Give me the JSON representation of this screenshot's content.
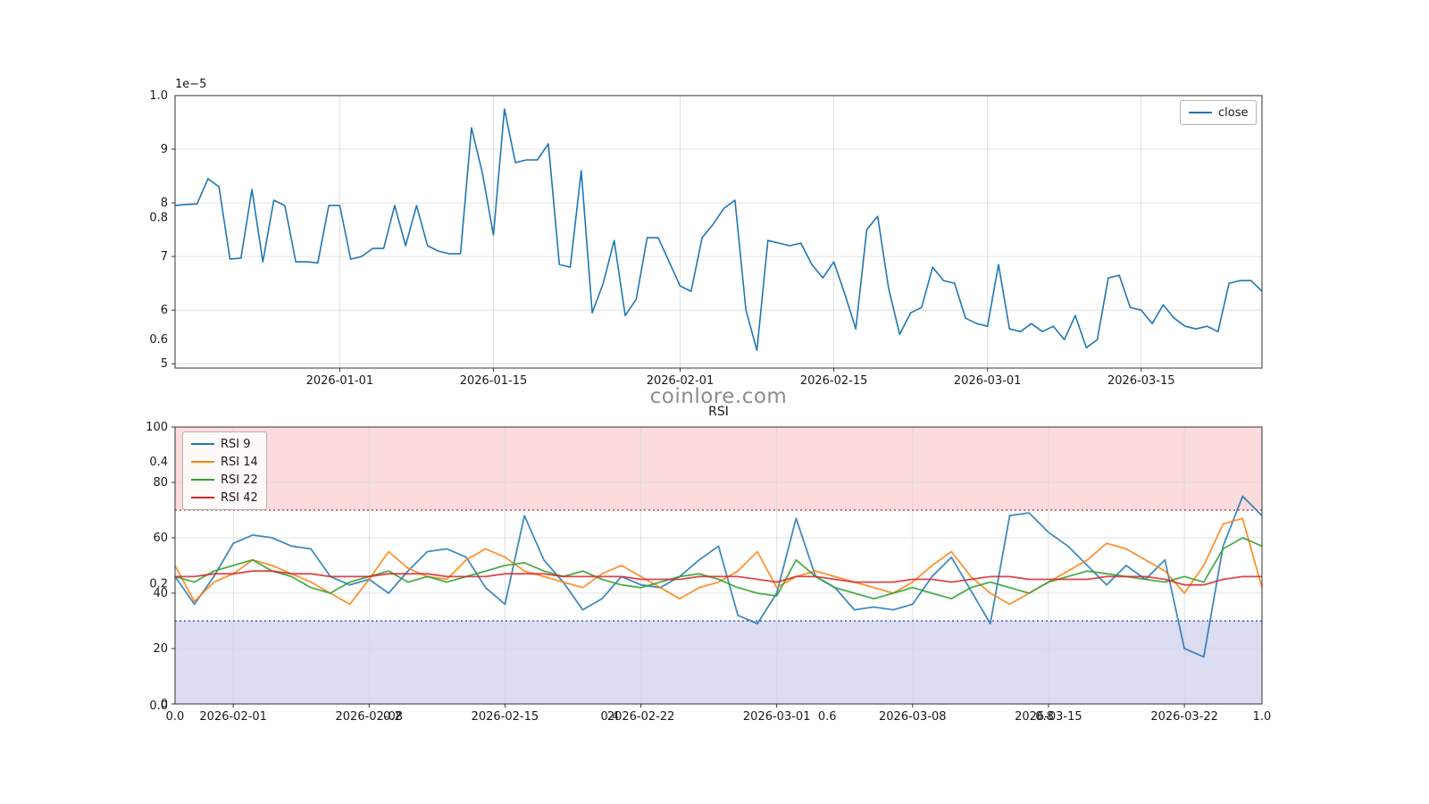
{
  "watermark": "coinlore.com",
  "colors": {
    "close_line": "#1f77b4",
    "grid": "#d8d8d8",
    "spine": "#333333",
    "tick_text": "#1a1a1a",
    "dotted_red": "#cc2222",
    "dotted_blue": "#2233cc",
    "band_overbought": "#fbdbdb",
    "band_oversold": "#dcdcf3"
  },
  "twin_axis": {
    "yticks": [
      1.0,
      0.8,
      0.6,
      0.4,
      0.2,
      0.0
    ],
    "xticks": [
      0.0,
      0.2,
      0.4,
      0.6,
      0.8,
      1.0
    ]
  },
  "chart_data": [
    {
      "type": "line",
      "title": "",
      "legend": [
        "close"
      ],
      "line_color": "#1f77b4",
      "unit": "1e-5",
      "offset_label": "1e−5",
      "x_start": "2025-12-17",
      "x_freq": "daily",
      "ylim": [
        4.92,
        10.0
      ],
      "yticks": [
        9,
        8,
        7,
        6,
        5
      ],
      "xticks": [
        "2026-01-01",
        "2026-01-15",
        "2026-02-01",
        "2026-02-15",
        "2026-03-01",
        "2026-03-15"
      ],
      "values_e5": [
        7.95,
        7.97,
        7.98,
        8.45,
        8.3,
        6.95,
        6.97,
        8.25,
        6.9,
        8.05,
        7.95,
        6.9,
        6.9,
        6.88,
        7.95,
        7.95,
        6.95,
        7.0,
        7.15,
        7.15,
        7.95,
        7.2,
        7.95,
        7.2,
        7.1,
        7.05,
        7.05,
        9.4,
        8.55,
        7.4,
        9.75,
        8.75,
        8.8,
        8.8,
        9.1,
        6.85,
        6.8,
        8.6,
        5.95,
        6.5,
        7.3,
        5.9,
        6.2,
        7.35,
        7.35,
        6.9,
        6.45,
        6.35,
        7.35,
        7.6,
        7.9,
        8.05,
        6.0,
        5.25,
        7.3,
        7.25,
        7.2,
        7.25,
        6.85,
        6.6,
        6.9,
        6.3,
        5.65,
        7.5,
        7.75,
        6.4,
        5.55,
        5.95,
        6.05,
        6.8,
        6.55,
        6.5,
        5.85,
        5.75,
        5.7,
        6.85,
        5.65,
        5.6,
        5.75,
        5.6,
        5.7,
        5.45,
        5.9,
        5.3,
        5.45,
        6.6,
        6.65,
        6.05,
        6.0,
        5.75,
        6.1,
        5.85,
        5.7,
        5.65,
        5.7,
        5.6,
        6.5,
        6.55,
        6.55,
        6.35
      ]
    },
    {
      "type": "line",
      "title": "RSI",
      "x_start": "2026-01-29",
      "x_freq": "daily",
      "ylim": [
        0,
        100
      ],
      "yticks": [
        100,
        80,
        60,
        40,
        20,
        0
      ],
      "xticks": [
        "2026-02-01",
        "2026-02-08",
        "2026-02-15",
        "2026-02-22",
        "2026-03-01",
        "2026-03-08",
        "2026-03-15",
        "2026-03-22"
      ],
      "overbought_line": 70,
      "oversold_line": 30,
      "bands": [
        {
          "from": 70,
          "to": 100,
          "color": "#fbdbdb"
        },
        {
          "from": 0,
          "to": 30,
          "color": "#dcdcf3"
        }
      ],
      "series": [
        {
          "name": "RSI 9",
          "color": "#1f77b4",
          "values": [
            46,
            36,
            46,
            58,
            61,
            60,
            57,
            56,
            46,
            43,
            45,
            40,
            48,
            55,
            56,
            53,
            42,
            36,
            68,
            52,
            44,
            34,
            38,
            46,
            43,
            42,
            46,
            52,
            57,
            32,
            29,
            40,
            67,
            46,
            42,
            34,
            35,
            34,
            36,
            46,
            53,
            41,
            29,
            68,
            69,
            62,
            57,
            50,
            43,
            50,
            45,
            52,
            20,
            17,
            57,
            75,
            68
          ]
        },
        {
          "name": "RSI 14",
          "color": "#ff7f0e",
          "values": [
            50,
            37,
            44,
            47,
            52,
            50,
            47,
            44,
            40,
            36,
            45,
            55,
            49,
            46,
            45,
            52,
            56,
            53,
            48,
            46,
            44,
            42,
            47,
            50,
            46,
            42,
            38,
            42,
            44,
            48,
            55,
            42,
            46,
            48,
            46,
            44,
            42,
            40,
            44,
            50,
            55,
            46,
            40,
            36,
            40,
            44,
            48,
            52,
            58,
            56,
            52,
            48,
            40,
            50,
            65,
            67,
            42
          ]
        },
        {
          "name": "RSI 22",
          "color": "#2ca02c",
          "values": [
            46,
            44,
            48,
            50,
            52,
            48,
            46,
            42,
            40,
            44,
            46,
            48,
            44,
            46,
            44,
            46,
            48,
            50,
            51,
            48,
            46,
            48,
            45,
            43,
            42,
            44,
            46,
            47,
            45,
            42,
            40,
            39,
            52,
            46,
            42,
            40,
            38,
            40,
            42,
            40,
            38,
            42,
            44,
            42,
            40,
            44,
            46,
            48,
            47,
            46,
            45,
            44,
            46,
            44,
            56,
            60,
            57
          ]
        },
        {
          "name": "RSI 42",
          "color": "#d62728",
          "values": [
            46,
            46,
            47,
            47,
            48,
            48,
            47,
            47,
            46,
            46,
            46,
            47,
            47,
            47,
            46,
            46,
            46,
            47,
            47,
            47,
            46,
            46,
            46,
            46,
            45,
            45,
            45,
            46,
            46,
            46,
            45,
            44,
            46,
            46,
            45,
            44,
            44,
            44,
            45,
            45,
            44,
            45,
            46,
            46,
            45,
            45,
            45,
            45,
            46,
            46,
            46,
            45,
            43,
            43,
            45,
            46,
            46
          ]
        }
      ]
    }
  ]
}
